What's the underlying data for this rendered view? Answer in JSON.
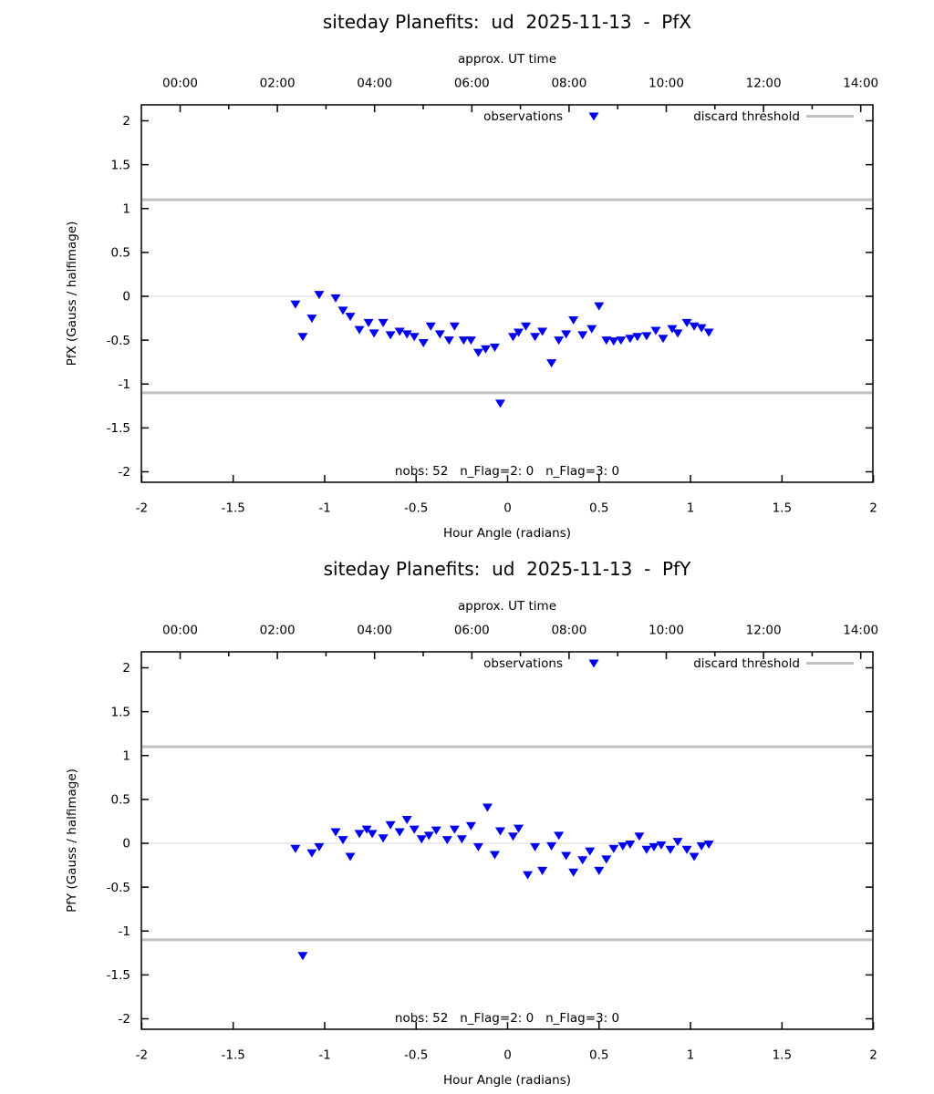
{
  "page": {
    "background": "#ffffff",
    "colors": {
      "marker_blue": "#0000ee",
      "discard_threshold_gray": "#c0c0c0",
      "zero_line_gray": "#d8d8d8",
      "text": "#000000"
    }
  },
  "chart_data": [
    {
      "type": "scatter",
      "title": "siteday Planefits:  ud  2025-11-13  -  PfX",
      "x2label": "approx. UT time",
      "x2_ticklabels": [
        "00:00",
        "02:00",
        "04:00",
        "06:00",
        "08:00",
        "10:00",
        "12:00",
        "14:00"
      ],
      "xlabel": "Hour Angle (radians)",
      "ylabel": "PfX (Gauss / halfimage)",
      "xlim": [
        -2,
        2
      ],
      "ylim": [
        -2.15,
        2.15
      ],
      "x_ticks": [
        -2,
        -1.5,
        -1,
        -0.5,
        0,
        0.5,
        1,
        1.5,
        2
      ],
      "y_ticks": [
        2,
        1.5,
        1,
        0.5,
        0,
        -0.5,
        -1,
        -1.5,
        -2
      ],
      "grid": "zero-line-only",
      "zero_line_y": 0,
      "discard_threshold": [
        1.1,
        -1.1
      ],
      "legend_position": "top-inside",
      "legend": [
        {
          "label": "observations",
          "marker": "filled-triangle-down",
          "color": "#0000ee"
        },
        {
          "label": "discard threshold",
          "marker": "line",
          "color": "#c0c0c0"
        }
      ],
      "annotation": "nobs: 52   n_Flag=2: 0   n_Flag=3: 0",
      "series": [
        {
          "name": "observations",
          "marker": "filled-triangle-down",
          "color": "#0000ee",
          "points": [
            [
              -1.16,
              -0.09
            ],
            [
              -1.12,
              -0.46
            ],
            [
              -1.07,
              -0.25
            ],
            [
              -1.03,
              0.02
            ],
            [
              -0.94,
              -0.02
            ],
            [
              -0.9,
              -0.16
            ],
            [
              -0.86,
              -0.23
            ],
            [
              -0.81,
              -0.38
            ],
            [
              -0.76,
              -0.3
            ],
            [
              -0.73,
              -0.42
            ],
            [
              -0.68,
              -0.3
            ],
            [
              -0.64,
              -0.44
            ],
            [
              -0.59,
              -0.4
            ],
            [
              -0.55,
              -0.43
            ],
            [
              -0.51,
              -0.46
            ],
            [
              -0.46,
              -0.53
            ],
            [
              -0.42,
              -0.34
            ],
            [
              -0.37,
              -0.43
            ],
            [
              -0.32,
              -0.5
            ],
            [
              -0.29,
              -0.34
            ],
            [
              -0.24,
              -0.5
            ],
            [
              -0.2,
              -0.5
            ],
            [
              -0.16,
              -0.64
            ],
            [
              -0.12,
              -0.6
            ],
            [
              -0.07,
              -0.58
            ],
            [
              -0.04,
              -1.22
            ],
            [
              0.03,
              -0.46
            ],
            [
              0.06,
              -0.41
            ],
            [
              0.1,
              -0.34
            ],
            [
              0.15,
              -0.46
            ],
            [
              0.19,
              -0.4
            ],
            [
              0.24,
              -0.76
            ],
            [
              0.28,
              -0.5
            ],
            [
              0.32,
              -0.43
            ],
            [
              0.36,
              -0.27
            ],
            [
              0.41,
              -0.44
            ],
            [
              0.46,
              -0.37
            ],
            [
              0.5,
              -0.11
            ],
            [
              0.54,
              -0.5
            ],
            [
              0.58,
              -0.51
            ],
            [
              0.62,
              -0.5
            ],
            [
              0.67,
              -0.48
            ],
            [
              0.71,
              -0.46
            ],
            [
              0.76,
              -0.45
            ],
            [
              0.81,
              -0.39
            ],
            [
              0.85,
              -0.48
            ],
            [
              0.9,
              -0.37
            ],
            [
              0.93,
              -0.42
            ],
            [
              0.98,
              -0.3
            ],
            [
              1.02,
              -0.34
            ],
            [
              1.06,
              -0.36
            ],
            [
              1.1,
              -0.41
            ]
          ]
        }
      ]
    },
    {
      "type": "scatter",
      "title": "siteday Planefits:  ud  2025-11-13  -  PfY",
      "x2label": "approx. UT time",
      "x2_ticklabels": [
        "00:00",
        "02:00",
        "04:00",
        "06:00",
        "08:00",
        "10:00",
        "12:00",
        "14:00"
      ],
      "xlabel": "Hour Angle (radians)",
      "ylabel": "PfY (Gauss / halfimage)",
      "xlim": [
        -2,
        2
      ],
      "ylim": [
        -2.15,
        2.15
      ],
      "x_ticks": [
        -2,
        -1.5,
        -1,
        -0.5,
        0,
        0.5,
        1,
        1.5,
        2
      ],
      "y_ticks": [
        2,
        1.5,
        1,
        0.5,
        0,
        -0.5,
        -1,
        -1.5,
        -2
      ],
      "grid": "zero-line-only",
      "zero_line_y": 0,
      "discard_threshold": [
        1.1,
        -1.1
      ],
      "legend_position": "top-inside",
      "legend": [
        {
          "label": "observations",
          "marker": "filled-triangle-down",
          "color": "#0000ee"
        },
        {
          "label": "discard threshold",
          "marker": "line",
          "color": "#c0c0c0"
        }
      ],
      "annotation": "nobs: 52   n_Flag=2: 0   n_Flag=3: 0",
      "series": [
        {
          "name": "observations",
          "marker": "filled-triangle-down",
          "color": "#0000ee",
          "points": [
            [
              -1.16,
              -0.06
            ],
            [
              -1.12,
              -1.28
            ],
            [
              -1.07,
              -0.11
            ],
            [
              -1.03,
              -0.04
            ],
            [
              -0.94,
              0.13
            ],
            [
              -0.9,
              0.04
            ],
            [
              -0.86,
              -0.15
            ],
            [
              -0.81,
              0.11
            ],
            [
              -0.77,
              0.16
            ],
            [
              -0.74,
              0.11
            ],
            [
              -0.68,
              0.06
            ],
            [
              -0.64,
              0.21
            ],
            [
              -0.59,
              0.13
            ],
            [
              -0.55,
              0.27
            ],
            [
              -0.51,
              0.16
            ],
            [
              -0.47,
              0.05
            ],
            [
              -0.43,
              0.09
            ],
            [
              -0.39,
              0.15
            ],
            [
              -0.33,
              0.04
            ],
            [
              -0.29,
              0.16
            ],
            [
              -0.25,
              0.05
            ],
            [
              -0.2,
              0.2
            ],
            [
              -0.16,
              -0.04
            ],
            [
              -0.11,
              0.41
            ],
            [
              -0.07,
              -0.13
            ],
            [
              -0.04,
              0.14
            ],
            [
              0.03,
              0.08
            ],
            [
              0.06,
              0.17
            ],
            [
              0.11,
              -0.36
            ],
            [
              0.15,
              -0.04
            ],
            [
              0.19,
              -0.31
            ],
            [
              0.24,
              -0.03
            ],
            [
              0.28,
              0.09
            ],
            [
              0.32,
              -0.14
            ],
            [
              0.36,
              -0.33
            ],
            [
              0.41,
              -0.19
            ],
            [
              0.45,
              -0.09
            ],
            [
              0.5,
              -0.31
            ],
            [
              0.54,
              -0.18
            ],
            [
              0.58,
              -0.06
            ],
            [
              0.63,
              -0.03
            ],
            [
              0.67,
              -0.01
            ],
            [
              0.72,
              0.08
            ],
            [
              0.76,
              -0.07
            ],
            [
              0.8,
              -0.04
            ],
            [
              0.84,
              -0.02
            ],
            [
              0.89,
              -0.07
            ],
            [
              0.93,
              0.02
            ],
            [
              0.98,
              -0.07
            ],
            [
              1.02,
              -0.15
            ],
            [
              1.06,
              -0.03
            ],
            [
              1.1,
              -0.01
            ]
          ]
        }
      ]
    }
  ]
}
